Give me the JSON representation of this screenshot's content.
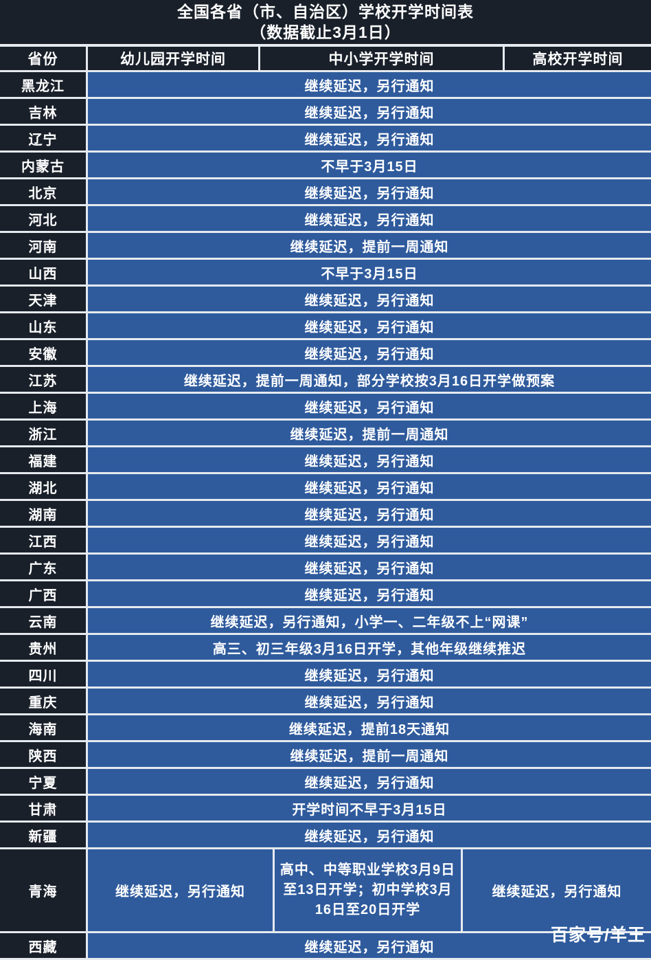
{
  "title": {
    "line1": "全国各省（市、自治区）学校开学时间表",
    "line2": "（数据截止3月1日）"
  },
  "header": {
    "cols": [
      "省份",
      "幼儿园开学时间",
      "中小学开学时间",
      "高校开学时间"
    ]
  },
  "rows": [
    {
      "province": "黑龙江",
      "merged": "继续延迟，另行通知"
    },
    {
      "province": "吉林",
      "merged": "继续延迟，另行通知"
    },
    {
      "province": "辽宁",
      "merged": "继续延迟，另行通知"
    },
    {
      "province": "内蒙古",
      "merged": "不早于3月15日"
    },
    {
      "province": "北京",
      "merged": "继续延迟，另行通知"
    },
    {
      "province": "河北",
      "merged": "继续延迟，另行通知"
    },
    {
      "province": "河南",
      "merged": "继续延迟，提前一周通知"
    },
    {
      "province": "山西",
      "merged": "不早于3月15日"
    },
    {
      "province": "天津",
      "merged": "继续延迟，另行通知"
    },
    {
      "province": "山东",
      "merged": "继续延迟，另行通知"
    },
    {
      "province": "安徽",
      "merged": "继续延迟，另行通知"
    },
    {
      "province": "江苏",
      "merged": "继续延迟，提前一周通知，部分学校按3月16日开学做预案"
    },
    {
      "province": "上海",
      "merged": "继续延迟，另行通知"
    },
    {
      "province": "浙江",
      "merged": "继续延迟，提前一周通知"
    },
    {
      "province": "福建",
      "merged": "继续延迟，另行通知"
    },
    {
      "province": "湖北",
      "merged": "继续延迟，另行通知"
    },
    {
      "province": "湖南",
      "merged": "继续延迟，另行通知"
    },
    {
      "province": "江西",
      "merged": "继续延迟，另行通知"
    },
    {
      "province": "广东",
      "merged": "继续延迟，另行通知"
    },
    {
      "province": "广西",
      "merged": "继续延迟，另行通知"
    },
    {
      "province": "云南",
      "merged": "继续延迟，另行通知，小学一、二年级不上“网课”"
    },
    {
      "province": "贵州",
      "merged": "高三、初三年级3月16日开学，其他年级继续推迟"
    },
    {
      "province": "四川",
      "merged": "继续延迟，另行通知"
    },
    {
      "province": "重庆",
      "merged": "继续延迟，另行通知"
    },
    {
      "province": "海南",
      "merged": "继续延迟，提前18天通知"
    },
    {
      "province": "陕西",
      "merged": "继续延迟，提前一周通知"
    },
    {
      "province": "宁夏",
      "merged": "继续延迟，另行通知"
    },
    {
      "province": "甘肃",
      "merged": "开学时间不早于3月15日"
    },
    {
      "province": "新疆",
      "merged": "继续延迟，另行通知"
    },
    {
      "province": "青海",
      "kindergarten": "继续延迟，另行通知",
      "primary_secondary": "高中、中等职业学校3月9日至13日开学；初中学校3月16日至20日开学",
      "college": "继续延迟，另行通知"
    },
    {
      "province": "西藏",
      "merged": "继续延迟，另行通知"
    }
  ],
  "watermark": "百家号/羊王",
  "colors": {
    "dark_cell": "#19202a",
    "blue_cell": "#2f5b9d",
    "grid_line": "#e6eaef",
    "text": "#ffffff"
  }
}
